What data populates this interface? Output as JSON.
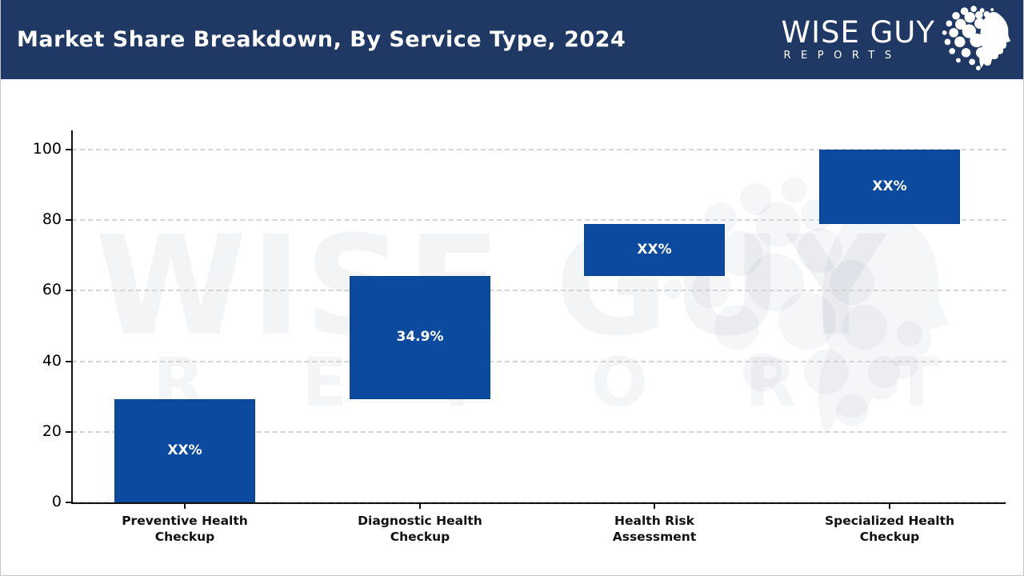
{
  "header": {
    "title": "Market Share Breakdown, By Service Type, 2024",
    "bg_color": "#1f3864",
    "logo": {
      "line1": "WISE GUY",
      "line2": "REPORTS"
    }
  },
  "watermark": {
    "line1": "WISE GUY",
    "line2": "R E P O R T S"
  },
  "chart_data": {
    "type": "bar",
    "subtype": "waterfall-floating-bars",
    "title": "Market Share Breakdown, By Service Type, 2024",
    "categories": [
      [
        "Preventive Health",
        "Checkup"
      ],
      [
        "Diagnostic Health",
        "Checkup"
      ],
      [
        "Health Risk",
        "Assessment"
      ],
      [
        "Specialized Health",
        "Checkup"
      ]
    ],
    "segments": [
      {
        "category": "Preventive Health Checkup",
        "start": 0,
        "end": 29.3,
        "label": "XX%"
      },
      {
        "category": "Diagnostic Health Checkup",
        "start": 29.3,
        "end": 64.2,
        "label": "34.9%",
        "value": 34.9
      },
      {
        "category": "Health Risk Assessment",
        "start": 64.2,
        "end": 78.9,
        "label": "XX%"
      },
      {
        "category": "Specialized Health Checkup",
        "start": 78.9,
        "end": 100,
        "label": "XX%"
      }
    ],
    "xlabel": "",
    "ylabel": "",
    "yticks": [
      0,
      20,
      40,
      60,
      80,
      100
    ],
    "ylim": [
      0,
      105
    ],
    "grid": "horizontal-dashed",
    "legend": "none",
    "bar_color": "#0b4a9f",
    "grid_color": "#d4d4d4",
    "header_color": "#1f3864"
  }
}
